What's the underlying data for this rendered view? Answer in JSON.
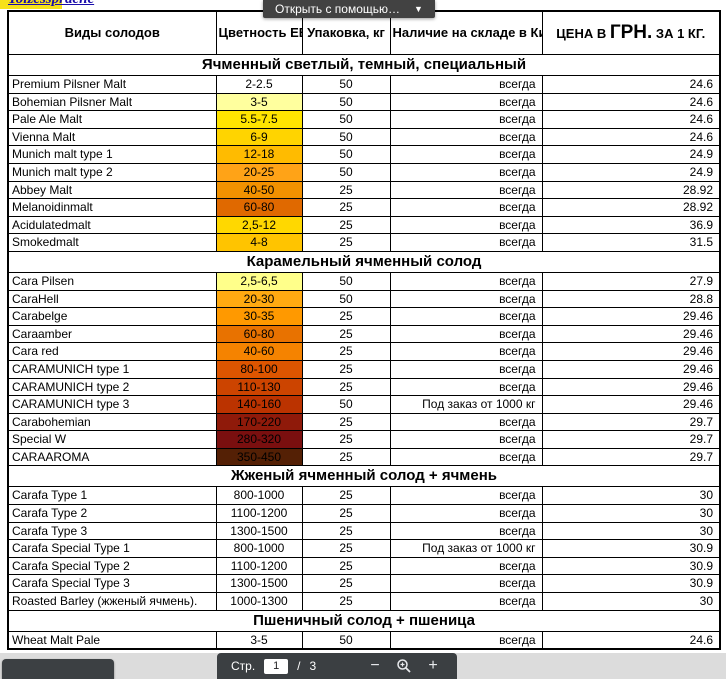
{
  "top_bar": {
    "link_text": "Tolzessprache",
    "open_with": "Открыть с помощью…"
  },
  "table": {
    "col_headers": {
      "malts": "Виды солодов",
      "color": "Цветность ЕВС",
      "pack": "Упаковка, кг",
      "stock": "Наличие на складе в Киеве",
      "price_pre": "ЦЕНА В ",
      "price_big": "ГРН.",
      "price_post": " ЗА 1 КГ."
    },
    "sections": [
      {
        "title": "Ячменный светлый, темный, специальный",
        "rows": [
          {
            "name": "Premium Pilsner Malt",
            "ebc": "2-2.5",
            "color": "#ffffff",
            "pack": "50",
            "stock": "всегда",
            "price": "24.6"
          },
          {
            "name": "Bohemian Pilsner Malt",
            "ebc": "3-5",
            "color": "#ffff9e",
            "pack": "50",
            "stock": "всегда",
            "price": "24.6"
          },
          {
            "name": "Pale Ale Malt",
            "ebc": "5.5-7.5",
            "color": "#ffe400",
            "pack": "50",
            "stock": "всегда",
            "price": "24.6"
          },
          {
            "name": "Vienna Malt",
            "ebc": "6-9",
            "color": "#ffd400",
            "pack": "50",
            "stock": "всегда",
            "price": "24.6"
          },
          {
            "name": "Munich malt  type 1",
            "ebc": "12-18",
            "color": "#ffbb00",
            "pack": "50",
            "stock": "всегда",
            "price": "24.9"
          },
          {
            "name": "Munich malt  type 2",
            "ebc": "20-25",
            "color": "#ffa317",
            "pack": "50",
            "stock": "всегда",
            "price": "24.9"
          },
          {
            "name": "Abbey Malt",
            "ebc": "40-50",
            "color": "#f29100",
            "pack": "25",
            "stock": "всегда",
            "price": "28.92"
          },
          {
            "name": "Melanoidinmalt",
            "ebc": "60-80",
            "color": "#e06900",
            "pack": "25",
            "stock": "всегда",
            "price": "28.92"
          },
          {
            "name": "Acidulatedmalt",
            "ebc": "2,5-12",
            "color": "#ffd800",
            "pack": "25",
            "stock": "всегда",
            "price": "36.9"
          },
          {
            "name": "Smokedmalt",
            "ebc": "4-8",
            "color": "#ffc400",
            "pack": "25",
            "stock": "всегда",
            "price": "31.5"
          }
        ]
      },
      {
        "title": "Карамельный ячменный солод",
        "rows": [
          {
            "name": "Cara Pilsen",
            "ebc": "2,5-6,5",
            "color": "#ffff8a",
            "pack": "50",
            "stock": "всегда",
            "price": "27.9"
          },
          {
            "name": "CaraHell",
            "ebc": "20-30",
            "color": "#ffaa11",
            "pack": "50",
            "stock": "всегда",
            "price": "28.8"
          },
          {
            "name": "Carabelge",
            "ebc": "30-35",
            "color": "#ff9900",
            "pack": "25",
            "stock": "всегда",
            "price": "29.46"
          },
          {
            "name": "Caraamber",
            "ebc": "60-80",
            "color": "#e87200",
            "pack": "25",
            "stock": "всегда",
            "price": "29.46"
          },
          {
            "name": "Cara red",
            "ebc": "40-60",
            "color": "#f58300",
            "pack": "25",
            "stock": "всегда",
            "price": "29.46"
          },
          {
            "name": "CARAMUNICH type 1",
            "ebc": "80-100",
            "color": "#dd5500",
            "pack": "25",
            "stock": "всегда",
            "price": "29.46"
          },
          {
            "name": "CARAMUNICH  type 2",
            "ebc": "110-130",
            "color": "#cc4400",
            "pack": "25",
            "stock": "всегда",
            "price": "29.46"
          },
          {
            "name": "CARAMUNICH  type 3",
            "ebc": "140-160",
            "color": "#bb3300",
            "pack": "50",
            "stock": "Под заказ от 1000 кг",
            "price": "29.46"
          },
          {
            "name": "Carabohemian",
            "ebc": "170-220",
            "color": "#8f1a0a",
            "pack": "25",
            "stock": "всегда",
            "price": "29.7"
          },
          {
            "name": "Special W",
            "ebc": "280-320",
            "color": "#7a0f0f",
            "pack": "25",
            "stock": "всегда",
            "price": "29.7"
          },
          {
            "name": "CARAAROMA",
            "ebc": "350-450",
            "color": "#542005",
            "pack": "25",
            "stock": "всегда",
            "price": "29.7"
          }
        ]
      },
      {
        "title": "Жженый ячменный солод + ячмень",
        "rows": [
          {
            "name": "Carafa Type 1",
            "ebc": "800-1000",
            "color": "#ffffff",
            "pack": "25",
            "stock": "всегда",
            "price": "30"
          },
          {
            "name": "Carafa Type 2",
            "ebc": "1100-1200",
            "color": "#ffffff",
            "pack": "25",
            "stock": "всегда",
            "price": "30"
          },
          {
            "name": "Carafa  Type 3",
            "ebc": "1300-1500",
            "color": "#ffffff",
            "pack": "25",
            "stock": "всегда",
            "price": "30"
          },
          {
            "name": "Carafa Special  Type 1",
            "ebc": "800-1000",
            "color": "#ffffff",
            "pack": "25",
            "stock": "Под заказ от 1000 кг",
            "price": "30.9"
          },
          {
            "name": "Carafa  Special Type 2",
            "ebc": "1100-1200",
            "color": "#ffffff",
            "pack": "25",
            "stock": "всегда",
            "price": "30.9"
          },
          {
            "name": "Carafa Special Type 3",
            "ebc": "1300-1500",
            "color": "#ffffff",
            "pack": "25",
            "stock": "всегда",
            "price": "30.9"
          },
          {
            "name": "Roasted Barley (жженый ячмень).",
            "ebc": "1000-1300",
            "color": "#ffffff",
            "pack": "25",
            "stock": "всегда",
            "price": "30"
          }
        ]
      },
      {
        "title": "Пшеничный солод + пшеница",
        "rows": [
          {
            "name": "Wheat Malt Pale",
            "ebc": "3-5",
            "color": "#ffffff",
            "pack": "50",
            "stock": "всегда",
            "price": "24.6"
          }
        ]
      }
    ]
  },
  "pager": {
    "page_label": "Стр.",
    "page_value": "1",
    "slash": "/",
    "total": "3",
    "zoom_out": "−",
    "zoom_in": "+"
  }
}
